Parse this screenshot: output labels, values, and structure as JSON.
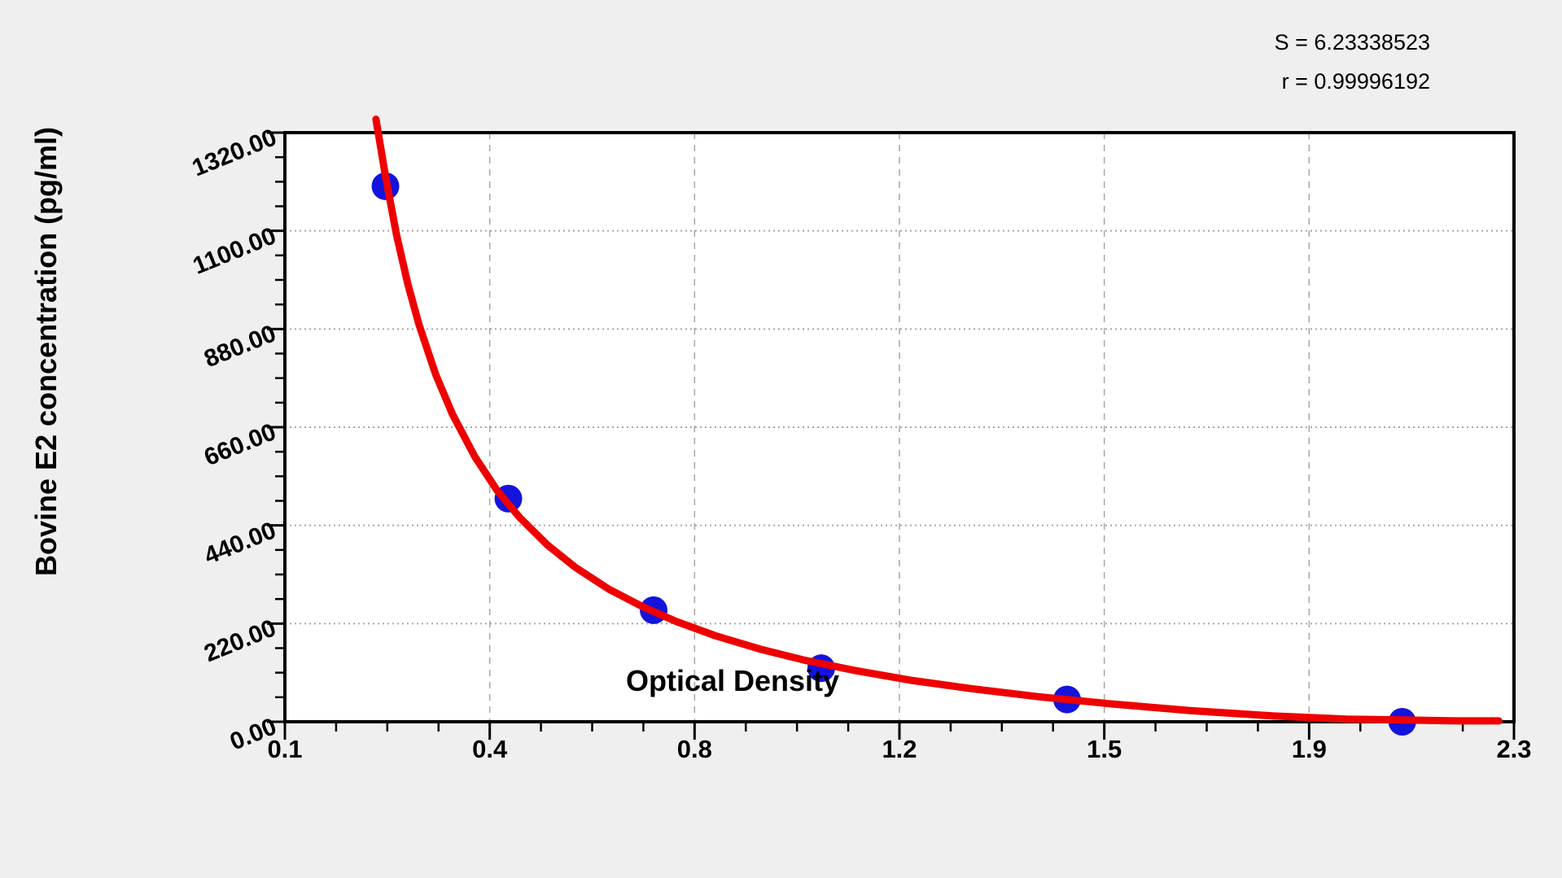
{
  "colors": {
    "page_bg": "#efeff0",
    "plot_bg": "#ffffff",
    "axis": "#000000",
    "grid": "#a6a6a6",
    "curve": "#ee0000",
    "points": "#1414dd"
  },
  "stats_panel": {
    "s_line": "S = 6.23338523",
    "r_line": "r = 0.99996192"
  },
  "chart_data": {
    "type": "scatter",
    "title": "",
    "xlabel": "Optical Density",
    "ylabel": "Bovine E2  concentration (pg/ml)",
    "xlim": [
      0.1,
      2.3
    ],
    "ylim": [
      0,
      1320
    ],
    "x_tick_labels": [
      "0.1",
      "0.4",
      "0.8",
      "1.2",
      "1.5",
      "1.9",
      "2.3"
    ],
    "y_tick_values": [
      0,
      220,
      440,
      660,
      880,
      1100,
      1320
    ],
    "y_tick_labels": [
      "0.00",
      "220.00",
      "440.00",
      "660.00",
      "880.00",
      "1100.00",
      "1320.00"
    ],
    "minor_divisions": 4,
    "grid": "dashed, interior majors only",
    "legend": "none",
    "annotations": {
      "s": "S = 6.23338523",
      "r": "r = 0.99996192"
    },
    "series": [
      {
        "name": "standard-points",
        "type": "scatter",
        "color": "#1414dd",
        "points": [
          [
            0.28,
            1200
          ],
          [
            0.5,
            500
          ],
          [
            0.76,
            250
          ],
          [
            1.06,
            120
          ],
          [
            1.5,
            50
          ],
          [
            2.1,
            0
          ]
        ]
      },
      {
        "name": "fitted-curve",
        "type": "line",
        "color": "#ee0000",
        "points": [
          [
            0.263,
            1350
          ],
          [
            0.28,
            1223
          ],
          [
            0.3,
            1090
          ],
          [
            0.32,
            981
          ],
          [
            0.34,
            890
          ],
          [
            0.37,
            778
          ],
          [
            0.4,
            689
          ],
          [
            0.44,
            594
          ],
          [
            0.48,
            518
          ],
          [
            0.52,
            458
          ],
          [
            0.57,
            396
          ],
          [
            0.62,
            346
          ],
          [
            0.68,
            297
          ],
          [
            0.74,
            258
          ],
          [
            0.8,
            225
          ],
          [
            0.87,
            193
          ],
          [
            0.95,
            163
          ],
          [
            1.03,
            138
          ],
          [
            1.12,
            115
          ],
          [
            1.22,
            93
          ],
          [
            1.33,
            74
          ],
          [
            1.45,
            56
          ],
          [
            1.58,
            40
          ],
          [
            1.72,
            25
          ],
          [
            1.87,
            13
          ],
          [
            2.0,
            6
          ],
          [
            2.1,
            4
          ],
          [
            2.2,
            2
          ],
          [
            2.273,
            2
          ]
        ]
      }
    ]
  }
}
